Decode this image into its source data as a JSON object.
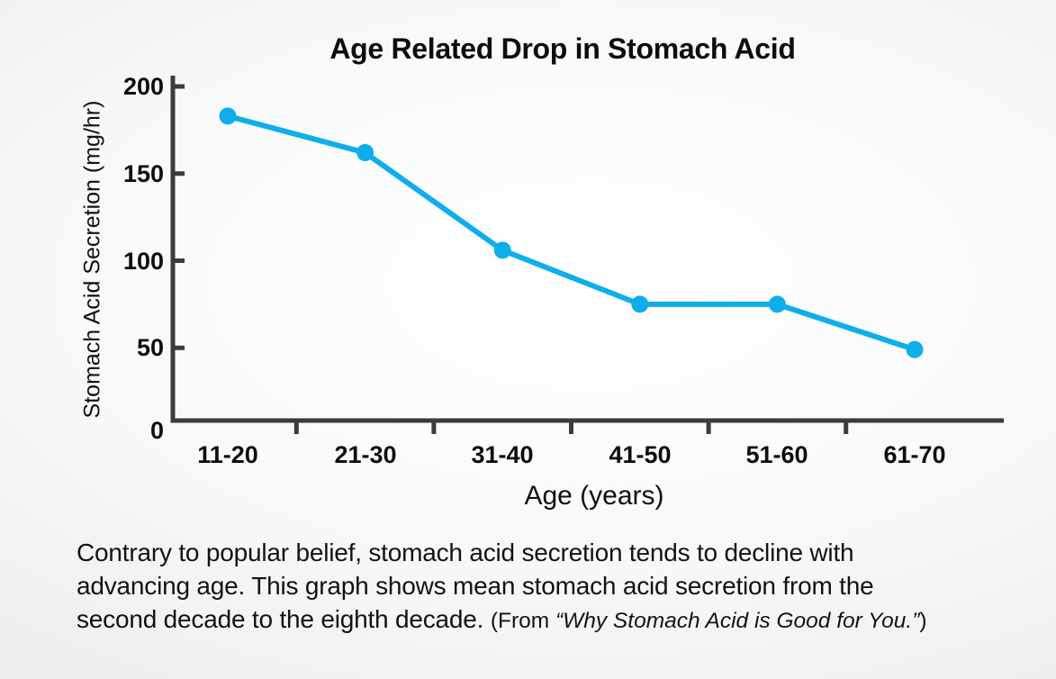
{
  "chart_data": {
    "type": "line",
    "title": "Age Related Drop in Stomach Acid",
    "xlabel": "Age (years)",
    "ylabel": "Stomach Acid Secretion (mg/hr)",
    "categories": [
      "11-20",
      "21-30",
      "31-40",
      "41-50",
      "51-60",
      "61-70"
    ],
    "series": [
      {
        "name": "Mean stomach acid secretion (mg/hr)",
        "values": [
          183,
          162,
          106,
          75,
          75,
          49
        ]
      }
    ],
    "y_ticks": [
      200,
      150,
      100,
      50,
      0
    ],
    "y_tick_labels": [
      "200",
      "150",
      "100",
      "50",
      "0"
    ],
    "ylim": [
      0,
      200
    ],
    "grid": false,
    "legend_position": "none",
    "line_color": "#0FAEEB",
    "axis_color": "#3C3C3C",
    "marker": "circle"
  },
  "caption": {
    "line1": "Contrary to popular belief, stomach acid secretion tends to decline with",
    "line2": "advancing age. This graph shows mean stomach acid secretion from the",
    "line3": "second decade to the eighth decade. ",
    "source_prefix": "(From ",
    "source_title": "“Why Stomach Acid is Good for You.”",
    "source_suffix": ")"
  }
}
